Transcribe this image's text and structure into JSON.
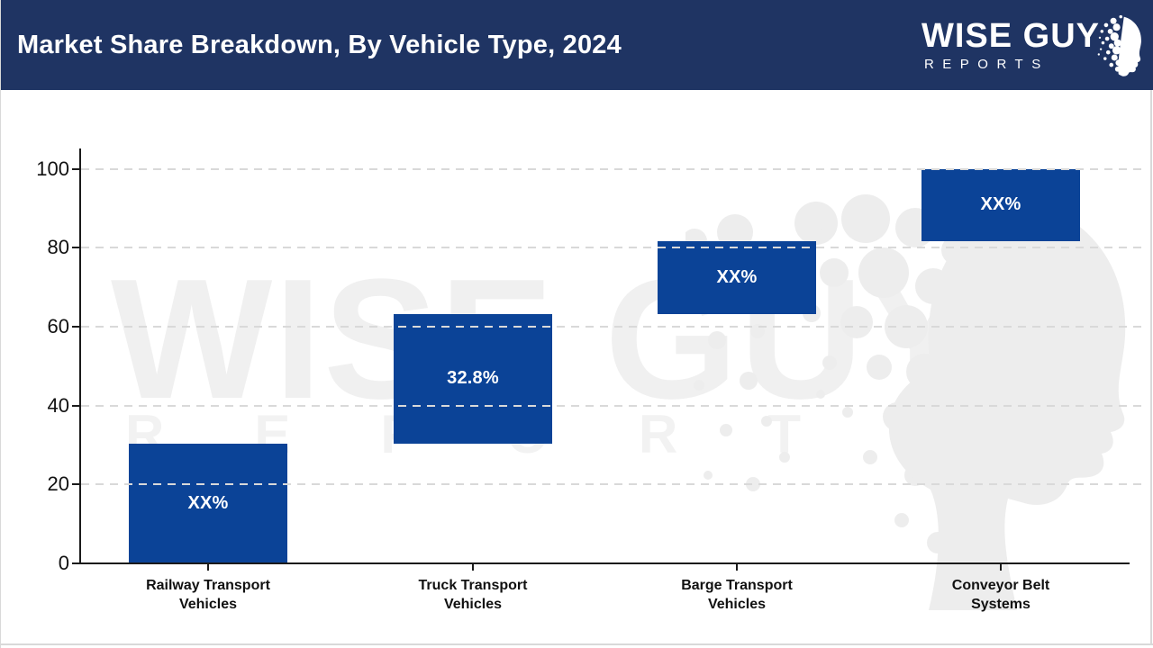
{
  "header": {
    "title": "Market Share Breakdown, By Vehicle Type, 2024",
    "bg_color": "#1f3463",
    "logo": {
      "name": "WISE GUY",
      "tagline": "REPORTS"
    }
  },
  "watermark": {
    "big_text": "WISE GUY",
    "sub_text": "REPORTS"
  },
  "chart_data": {
    "type": "bar",
    "subtype": "floating-segment-waterfall",
    "title": "Market Share Breakdown, By Vehicle Type, 2024",
    "categories": [
      "Railway Transport Vehicles",
      "Truck Transport Vehicles",
      "Barge Transport Vehicles",
      "Conveyor Belt Systems"
    ],
    "category_lines": [
      [
        "Railway Transport",
        "Vehicles"
      ],
      [
        "Truck Transport",
        "Vehicles"
      ],
      [
        "Barge Transport",
        "Vehicles"
      ],
      [
        "Conveyor Belt",
        "Systems"
      ]
    ],
    "segments": [
      {
        "category": "Railway Transport Vehicles",
        "from": 0,
        "to": 30.4,
        "label": "XX%"
      },
      {
        "category": "Truck Transport Vehicles",
        "from": 30.4,
        "to": 63.2,
        "label": "32.8%"
      },
      {
        "category": "Barge Transport Vehicles",
        "from": 63.2,
        "to": 81.6,
        "label": "XX%"
      },
      {
        "category": "Conveyor Belt Systems",
        "from": 81.6,
        "to": 100,
        "label": "XX%"
      }
    ],
    "xlabel": "",
    "ylabel": "",
    "ylim": [
      0,
      100
    ],
    "yticks": [
      0,
      20,
      40,
      60,
      80,
      100
    ],
    "grid": "horizontal-dashed",
    "legend": null,
    "colors": {
      "bar": "#0b4397",
      "bar_label": "#ffffff",
      "axis": "#1a1a1a",
      "grid": "#d9d9d9",
      "tick_label": "#111111"
    }
  }
}
